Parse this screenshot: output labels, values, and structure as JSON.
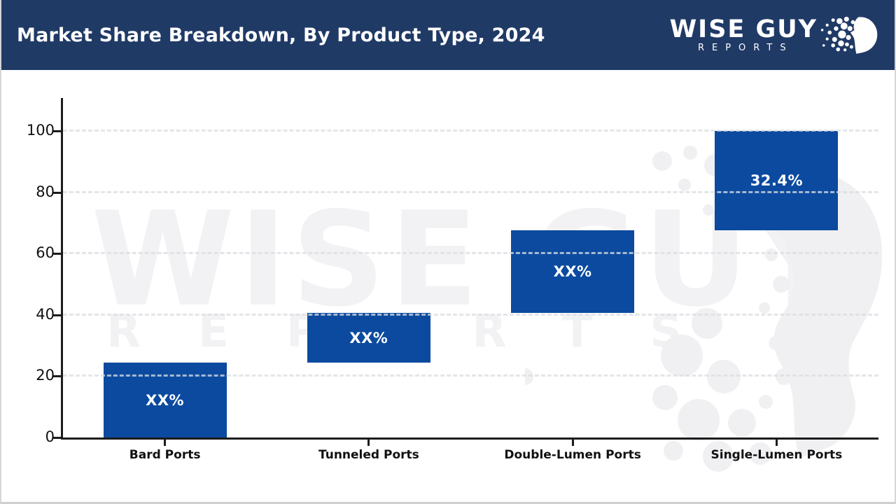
{
  "header": {
    "title": "Market Share Breakdown, By Product Type, 2024",
    "logo": {
      "name": "WISE GUY",
      "subtitle": "REPORTS"
    }
  },
  "watermark": {
    "line1": "WISE GUY",
    "line2": "REPORTS"
  },
  "chart_data": {
    "type": "bar",
    "subtype": "waterfall",
    "title": "Market Share Breakdown, By Product Type, 2024",
    "categories": [
      "Bard Ports",
      "Tunneled Ports",
      "Double-Lumen Ports",
      "Single-Lumen Ports"
    ],
    "bars": [
      {
        "category": "Bard Ports",
        "start": 0,
        "end": 24.4,
        "value": 24.4,
        "label": "XX%"
      },
      {
        "category": "Tunneled Ports",
        "start": 24.4,
        "end": 40.6,
        "value": 16.2,
        "label": "XX%"
      },
      {
        "category": "Double-Lumen Ports",
        "start": 40.6,
        "end": 67.6,
        "value": 27.0,
        "label": "XX%"
      },
      {
        "category": "Single-Lumen Ports",
        "start": 67.6,
        "end": 100,
        "value": 32.4,
        "label": "32.4%"
      }
    ],
    "xlabel": "",
    "ylabel": "",
    "yticks": [
      0,
      20,
      40,
      60,
      80,
      100
    ],
    "ylim": [
      0,
      110
    ],
    "grid": "horizontal dashed, drawn over bars",
    "legend": "none",
    "bar_color": "#0b4a9f",
    "bar_label_color": "#ffffff"
  },
  "colors": {
    "header_bg": "#203a66",
    "bar": "#0b4a9f",
    "axis": "#1c1c1c",
    "gridline": "#dadde0",
    "watermark": "#f2f2f4",
    "page_border": "#d6d6d8",
    "title_text": "#ffffff",
    "tick_text": "#111111"
  }
}
